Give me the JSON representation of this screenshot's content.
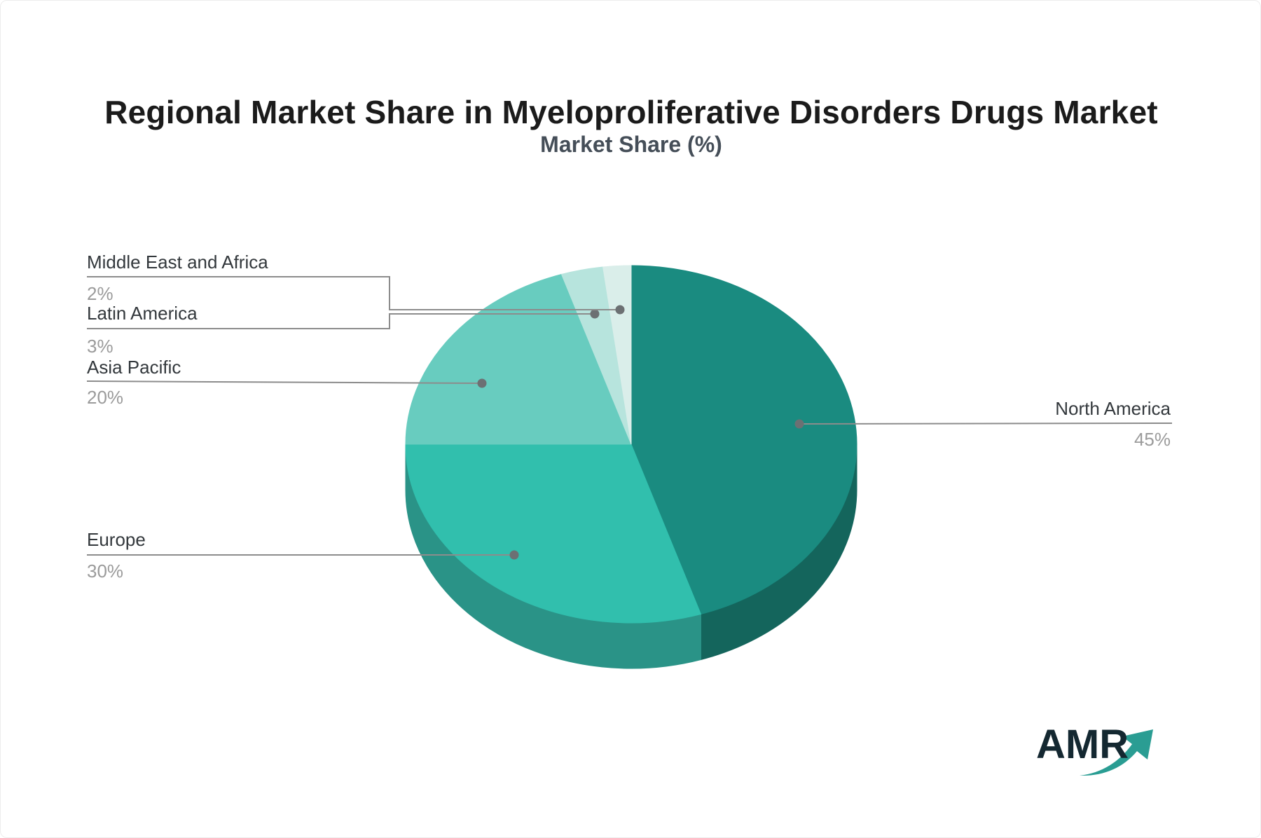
{
  "header": {
    "title": "Regional Market Share in Myeloproliferative Disorders Drugs Market",
    "subtitle": "Market Share (%)"
  },
  "chart_data": {
    "type": "pie",
    "style": "3d",
    "title": "Regional Market Share in Myeloproliferative Disorders Drugs Market",
    "subtitle": "Market Share (%)",
    "start_angle": "12 o'clock, clockwise",
    "slices": [
      {
        "name": "North America",
        "value": 45,
        "label": "45%",
        "color": "#1a8b80",
        "rim": "#14655c"
      },
      {
        "name": "Europe",
        "value": 30,
        "label": "30%",
        "color": "#31bfad",
        "rim": "#2a9387"
      },
      {
        "name": "Asia Pacific",
        "value": 20,
        "label": "20%",
        "color": "#68ccbf",
        "rim": "#4db3a5"
      },
      {
        "name": "Latin America",
        "value": 3,
        "label": "3%",
        "color": "#b7e4dd",
        "rim": "#93cfc5"
      },
      {
        "name": "Middle East and Africa",
        "value": 2,
        "label": "2%",
        "color": "#daeeea",
        "rim": "#b9dcd6"
      }
    ],
    "legend_position": "callout-labels"
  },
  "palette": {
    "leader_line": "#8c8c8c",
    "leader_dot": "#6c7073",
    "name_text": "#33383c",
    "pct_text": "#9b9b9b",
    "title_text": "#1b1b1b",
    "subtitle_text": "#454e58",
    "logo_text_color": "#142831",
    "logo_arrow_color": "#2a9d93"
  },
  "logo": {
    "text": "AMR"
  }
}
